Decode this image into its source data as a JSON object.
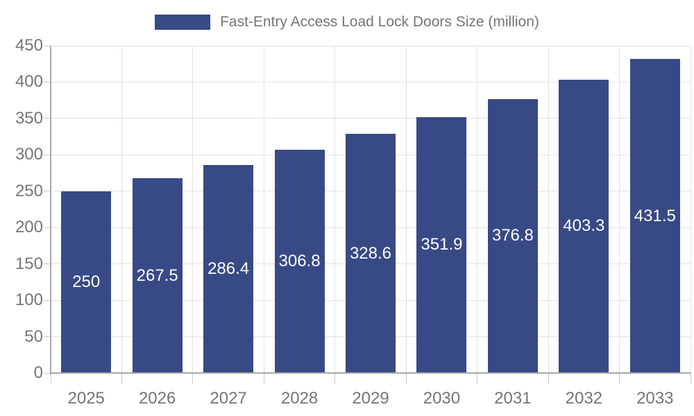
{
  "legend": {
    "label": "Fast-Entry Access Load Lock Doors Size (million)"
  },
  "colors": {
    "bar": "#384A85",
    "grid": "#E2E2E2",
    "axis": "#A8A8A8",
    "tick": "#C6C6C6",
    "tick_label": "#757575",
    "legend_label": "#757575",
    "value_label": "#FFFFFF",
    "background": "#FFFFFF"
  },
  "chart_data": {
    "type": "bar",
    "title": "Fast-Entry Access Load Lock Doors Size (million)",
    "categories": [
      "2025",
      "2026",
      "2027",
      "2028",
      "2029",
      "2030",
      "2031",
      "2032",
      "2033"
    ],
    "values": [
      250,
      267.5,
      286.4,
      306.8,
      328.6,
      351.9,
      376.8,
      403.3,
      431.5
    ],
    "value_labels": [
      "250",
      "267.5",
      "286.4",
      "306.8",
      "328.6",
      "351.9",
      "376.8",
      "403.3",
      "431.5"
    ],
    "xlabel": "",
    "ylabel": "",
    "ylim": [
      0,
      450
    ],
    "yticks": [
      0,
      50,
      100,
      150,
      200,
      250,
      300,
      350,
      400,
      450
    ],
    "grid": true,
    "legend_position": "top-center",
    "bar_color": "#384A85"
  }
}
